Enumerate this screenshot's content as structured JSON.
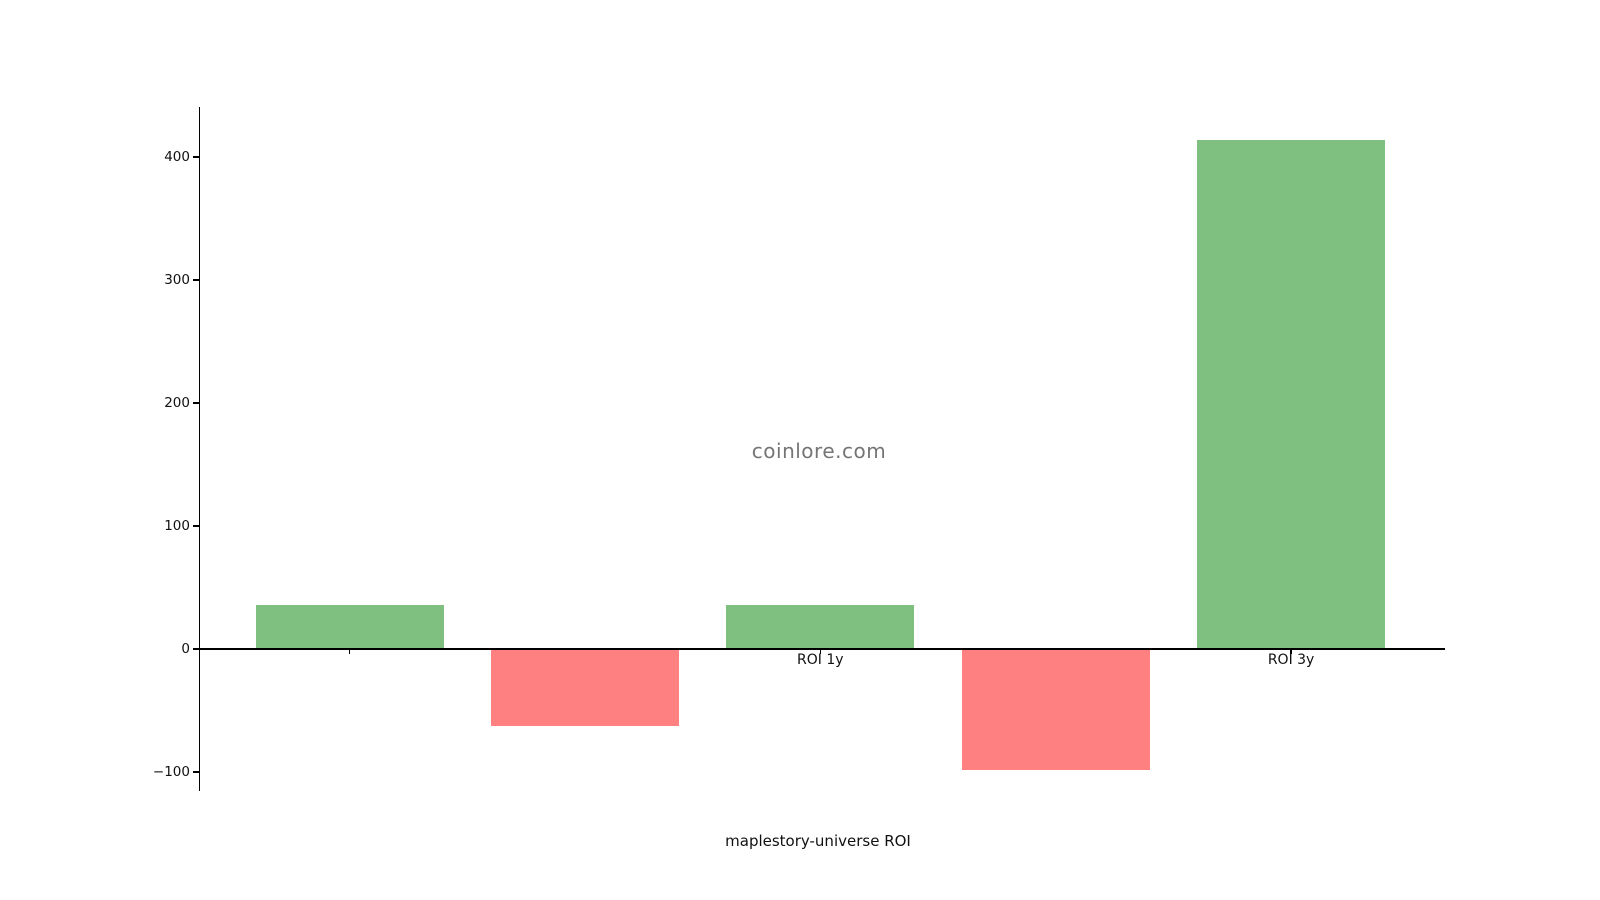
{
  "watermark": {
    "text": "coinlore.com",
    "color": "#757575"
  },
  "chart_data": {
    "type": "bar",
    "title": "",
    "xlabel": "maplestory-universe ROI",
    "ylabel": "",
    "categories": [
      "",
      "",
      "ROI 1y",
      "",
      "ROI 3y"
    ],
    "values": [
      36,
      -63,
      36,
      -98,
      414
    ],
    "bar_colors": [
      "#7fbf7f",
      "#ff8080",
      "#7fbf7f",
      "#ff8080",
      "#7fbf7f"
    ],
    "positive_color": "#7fbf7f",
    "negative_color": "#ff8080",
    "yticks": [
      -100,
      0,
      100,
      200,
      300,
      400
    ],
    "ylim": [
      -115,
      441
    ],
    "xticks": [
      {
        "index": 0,
        "label": ""
      },
      {
        "index": 2,
        "label": "ROI 1y"
      },
      {
        "index": 4,
        "label": "ROI 3y"
      }
    ],
    "grid": false,
    "legend_position": "none",
    "axis_color": "#000000",
    "watermark": "coinlore.com"
  }
}
